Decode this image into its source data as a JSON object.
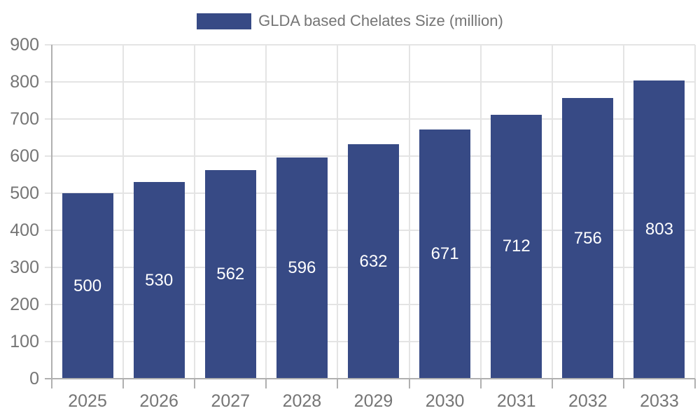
{
  "legend": {
    "label": "GLDA based Chelates Size (million)"
  },
  "chart_data": {
    "type": "bar",
    "title": "GLDA based Chelates Size (million)",
    "categories": [
      "2025",
      "2026",
      "2027",
      "2028",
      "2029",
      "2030",
      "2031",
      "2032",
      "2033"
    ],
    "series": [
      {
        "name": "GLDA based Chelates Size (million)",
        "values": [
          500,
          530,
          562,
          596,
          632,
          671,
          712,
          756,
          803
        ]
      }
    ],
    "xlabel": "",
    "ylabel": "",
    "ylim": [
      0,
      900
    ],
    "yticks": [
      0,
      100,
      200,
      300,
      400,
      500,
      600,
      700,
      800,
      900
    ],
    "grid": true,
    "bar_labels_shown": true,
    "legend_position": "top-center",
    "colors": {
      "bar": "#374A85",
      "bar_label": "#ffffff",
      "grid": "#e4e4e4",
      "axis": "#b0b0b0",
      "tick_text": "#757575",
      "background": "#ffffff"
    }
  }
}
